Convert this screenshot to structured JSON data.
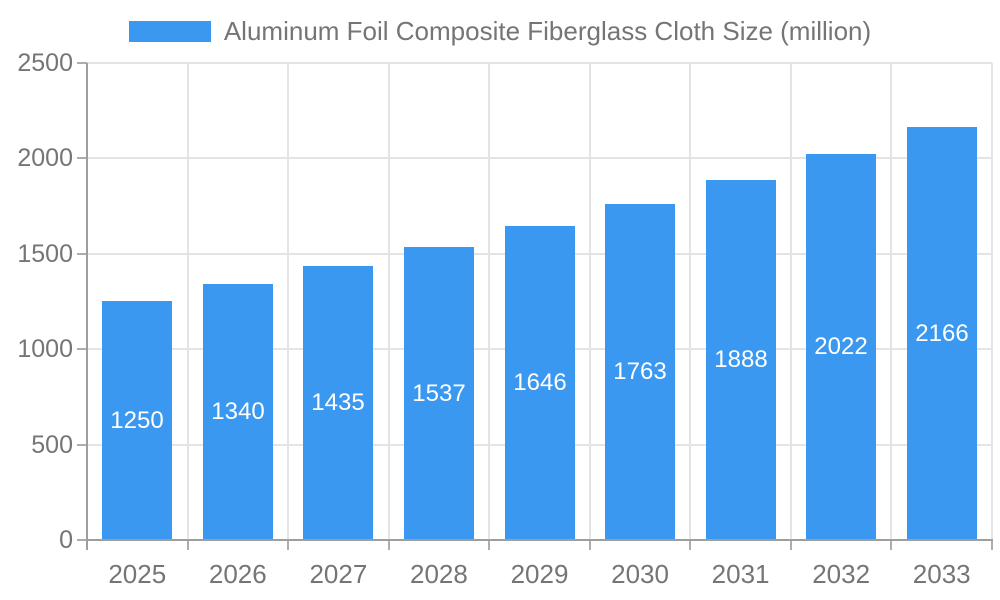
{
  "chart_data": {
    "type": "bar",
    "title": "Aluminum Foil Composite Fiberglass Cloth Size (million)",
    "legend_entries": [
      "Aluminum Foil Composite Fiberglass Cloth Size (million)"
    ],
    "legend_position": "top-center",
    "categories": [
      "2025",
      "2026",
      "2027",
      "2028",
      "2029",
      "2030",
      "2031",
      "2032",
      "2033"
    ],
    "values": [
      1250,
      1340,
      1435,
      1537,
      1646,
      1763,
      1888,
      2022,
      2166
    ],
    "xlabel": "",
    "ylabel": "",
    "ylim": [
      0,
      2500
    ],
    "y_ticks": [
      0,
      500,
      1000,
      1500,
      2000,
      2500
    ],
    "grid": true,
    "value_labels": "inside-center",
    "colors": {
      "bar": "#3b98f0",
      "value_label": "#ffffff",
      "axis_text": "#757575",
      "legend_text": "#757575",
      "gridline": "#e4e4e4",
      "axis_line": "#9e9e9e",
      "tick_mark": "#adadad",
      "background": "#ffffff"
    }
  }
}
